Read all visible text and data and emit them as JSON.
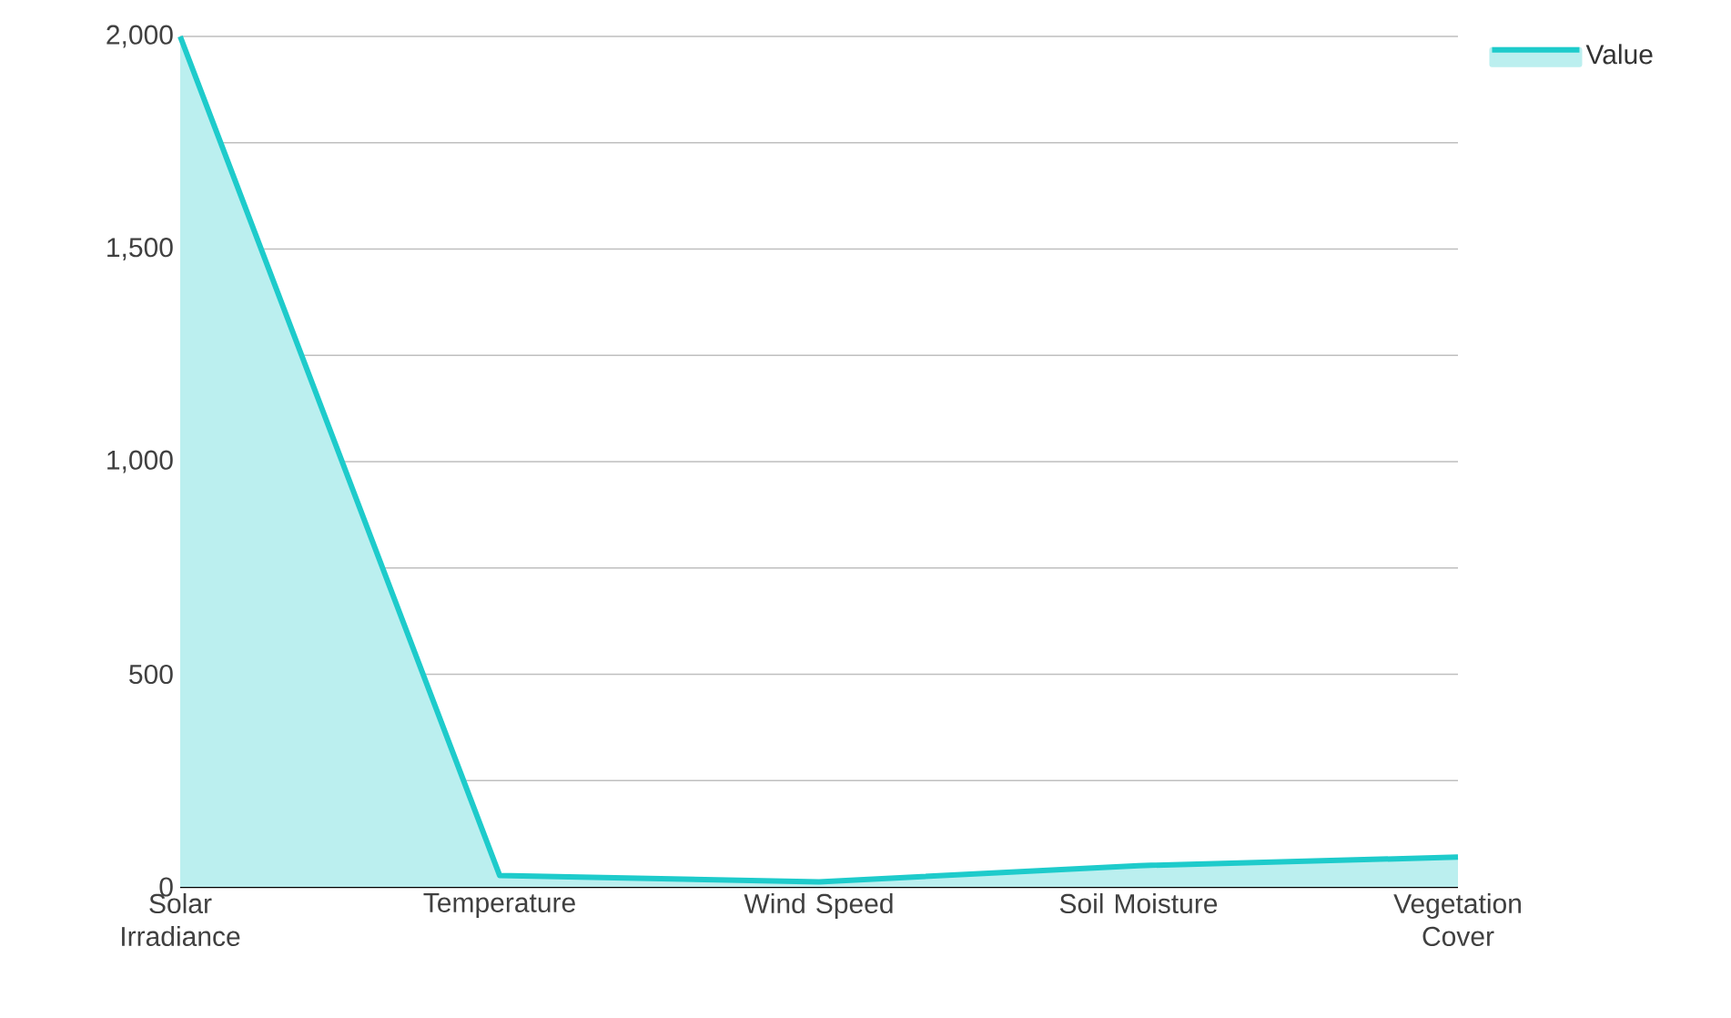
{
  "chart_data": {
    "type": "area",
    "categories": [
      "Solar Irradiance",
      "Temperature",
      "Wind Speed",
      "Soil Moisture",
      "Vegetation Cover"
    ],
    "series": [
      {
        "name": "Value",
        "color": "#1ecbcb",
        "values": [
          2000,
          27,
          12,
          50,
          70
        ]
      }
    ],
    "ylim": [
      0,
      2000
    ],
    "yticks": [
      0,
      {
        "value": 250,
        "label": null
      },
      500,
      {
        "value": 750,
        "label": null
      },
      {
        "value": 1000,
        "label": "1,000"
      },
      {
        "value": 1250,
        "label": null
      },
      {
        "value": 1500,
        "label": "1,500"
      },
      {
        "value": 1750,
        "label": null
      },
      {
        "value": 2000,
        "label": "2,000"
      }
    ],
    "grid": "y",
    "legend": "top right",
    "marker": "none",
    "line_style": "solid"
  }
}
